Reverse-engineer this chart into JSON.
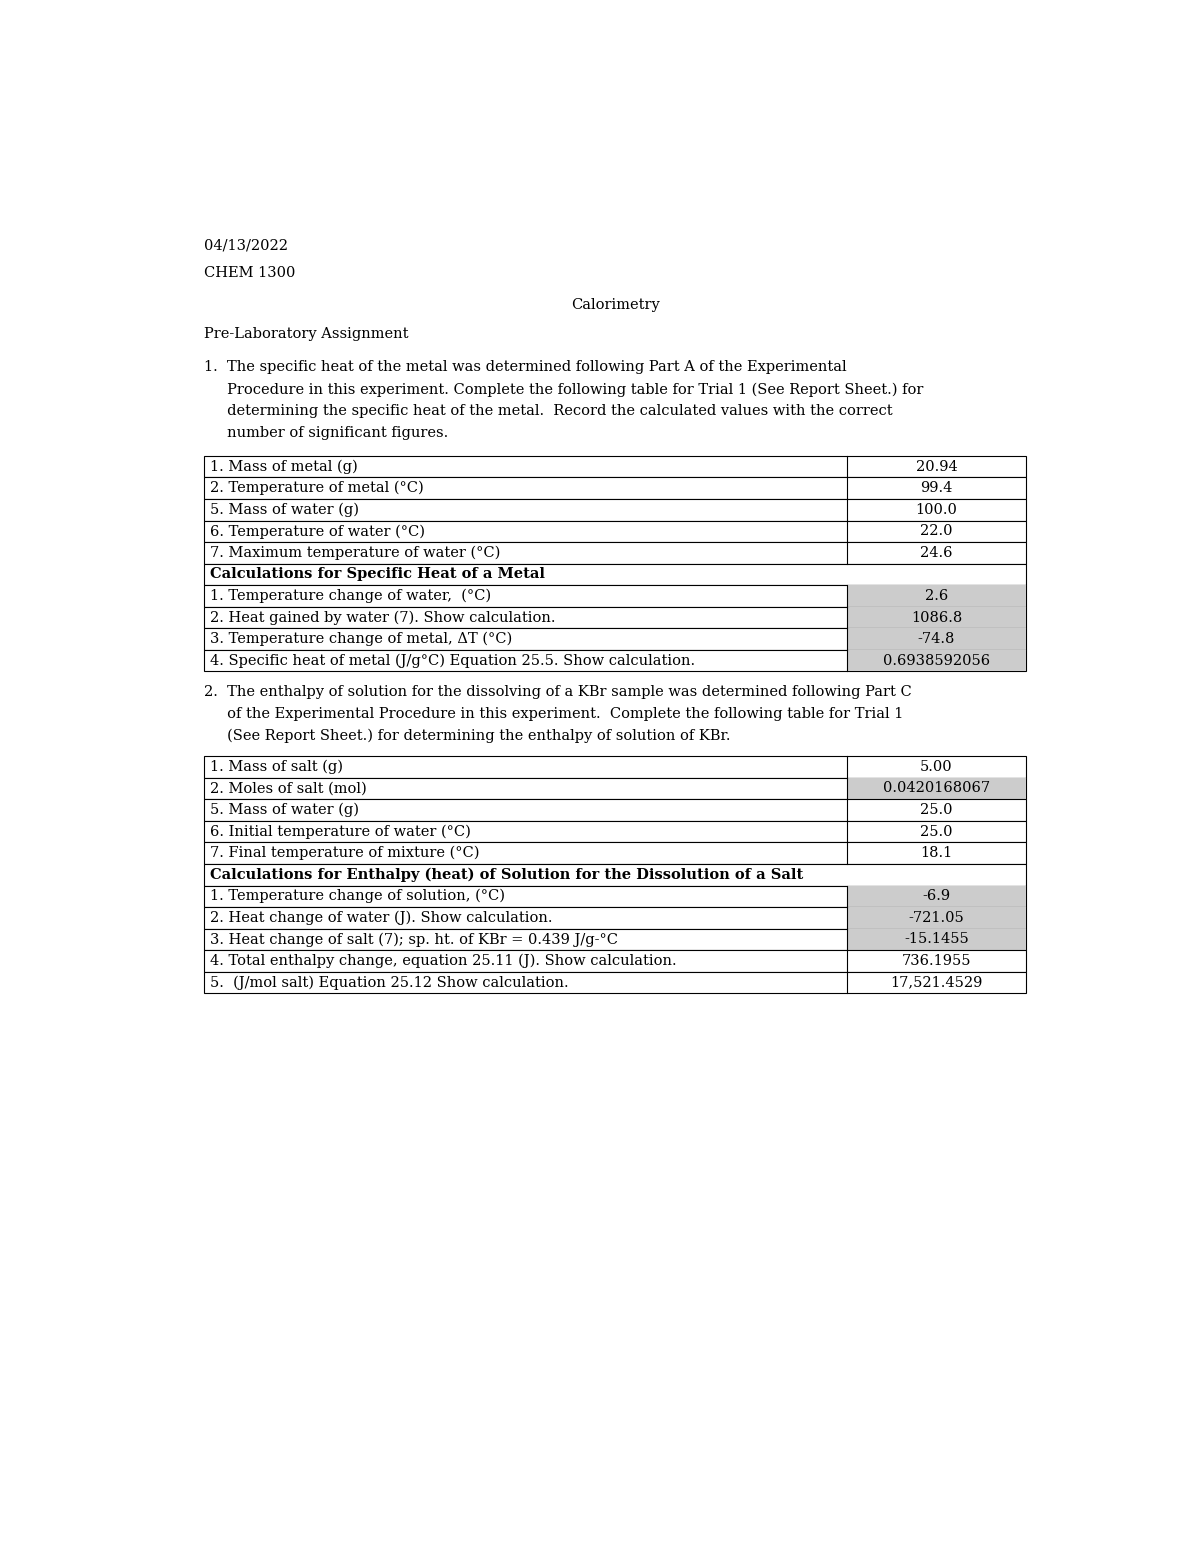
{
  "date": "04/13/2022",
  "course": "CHEM 1300",
  "title": "Calorimetry",
  "section": "Pre-Laboratory Assignment",
  "q1_intro": [
    "1.  The specific heat of the metal was determined following Part A of the Experimental",
    "     Procedure in this experiment. Complete the following table for Trial 1 (See Report Sheet.) for",
    "     determining the specific heat of the metal.  Record the calculated values with the correct",
    "     number of significant figures."
  ],
  "table1_rows": [
    [
      "1. Mass of metal (g)",
      "20.94",
      false
    ],
    [
      "2. Temperature of metal (°C)",
      "99.4",
      false
    ],
    [
      "5. Mass of water (g)",
      "100.0",
      false
    ],
    [
      "6. Temperature of water (°C)",
      "22.0",
      false
    ],
    [
      "7. Maximum temperature of water (°C)",
      "24.6",
      false
    ]
  ],
  "table1_header": "Calculations for Specific Heat of a Metal",
  "table1_calc_rows": [
    [
      "1. Temperature change of water,  (°C)",
      "2.6",
      true
    ],
    [
      "2. Heat gained by water (7). Show calculation.",
      "1086.8",
      true
    ],
    [
      "3. Temperature change of metal, ΔT (°C)",
      "-74.8",
      true
    ],
    [
      "4. Specific heat of metal (J/g°C) Equation 25.5. Show calculation.",
      "0.6938592056",
      true
    ]
  ],
  "q2_intro": [
    "2.  The enthalpy of solution for the dissolving of a KBr sample was determined following Part C",
    "     of the Experimental Procedure in this experiment.  Complete the following table for Trial 1",
    "     (See Report Sheet.) for determining the enthalpy of solution of KBr."
  ],
  "table2_rows": [
    [
      "1. Mass of salt (g)",
      "5.00",
      false
    ],
    [
      "2. Moles of salt (mol)",
      "0.0420168067",
      true
    ],
    [
      "5. Mass of water (g)",
      "25.0",
      false
    ],
    [
      "6. Initial temperature of water (°C)",
      "25.0",
      false
    ],
    [
      "7. Final temperature of mixture (°C)",
      "18.1",
      false
    ]
  ],
  "table2_header": "Calculations for Enthalpy (heat) of Solution for the Dissolution of a Salt",
  "table2_calc_rows": [
    [
      "1. Temperature change of solution, (°C)",
      "-6.9",
      true
    ],
    [
      "2. Heat change of water (J). Show calculation.",
      "-721.05",
      true
    ],
    [
      "3. Heat change of salt (7); sp. ht. of KBr = 0.439 J/g-°C",
      "-15.1455",
      true
    ],
    [
      "4. Total enthalpy change, equation 25.11 (J). Show calculation.",
      "736.1955",
      false
    ],
    [
      "5.  (J/mol salt) Equation 25.12 Show calculation.",
      "17,521.4529",
      false
    ]
  ],
  "bg_color": "#ffffff",
  "border_color": "#000000",
  "shaded_color": "#cccccc",
  "text_color": "#000000",
  "font_size": 10.5,
  "font_family": "DejaVu Serif"
}
